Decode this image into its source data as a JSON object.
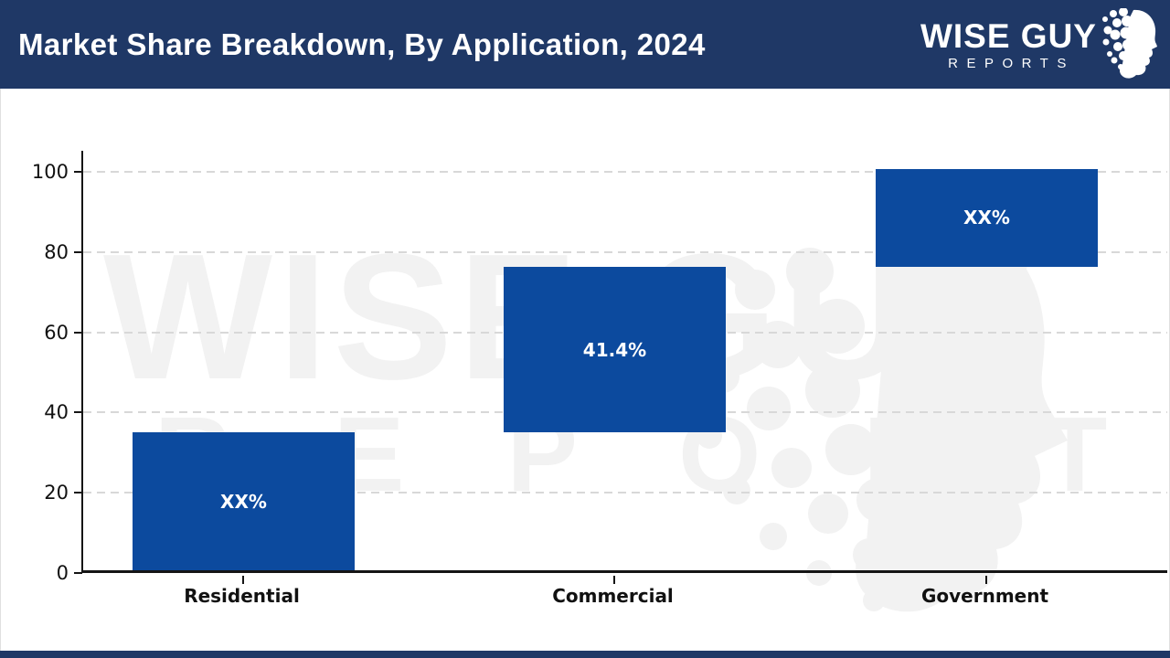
{
  "header": {
    "title": "Market Share Breakdown, By Application, 2024",
    "logo": {
      "line1": "WISE GUY",
      "line2": "REPORTS"
    }
  },
  "watermark": {
    "line1": "WISE GUY",
    "line2": "R E P O R T S"
  },
  "chart_data": {
    "type": "bar",
    "subtype": "floating-waterfall",
    "title": "Market Share Breakdown, By Application, 2024",
    "categories": [
      "Residential",
      "Commercial",
      "Government"
    ],
    "bars": [
      {
        "category": "Residential",
        "start": 0,
        "end": 34.3,
        "value": 34.3,
        "label": "XX%"
      },
      {
        "category": "Commercial",
        "start": 34.3,
        "end": 75.7,
        "value": 41.4,
        "label": "41.4%"
      },
      {
        "category": "Government",
        "start": 75.7,
        "end": 100,
        "value": 24.3,
        "label": "XX%"
      }
    ],
    "xlabel": "",
    "ylabel": "",
    "ylim": [
      0,
      105
    ],
    "yticks": [
      0,
      20,
      40,
      60,
      80,
      100
    ],
    "grid": "horizontal-dashed",
    "legend": "none",
    "bar_color": "#0c4a9e",
    "bar_label_color": "#ffffff"
  },
  "colors": {
    "header_bg": "#1f3866",
    "footer_bg": "#1f3866",
    "bar": "#0c4a9e",
    "gridline": "#d8d8d8",
    "axis": "#151515",
    "watermark": "#f2f2f2",
    "title_text": "#ffffff"
  }
}
